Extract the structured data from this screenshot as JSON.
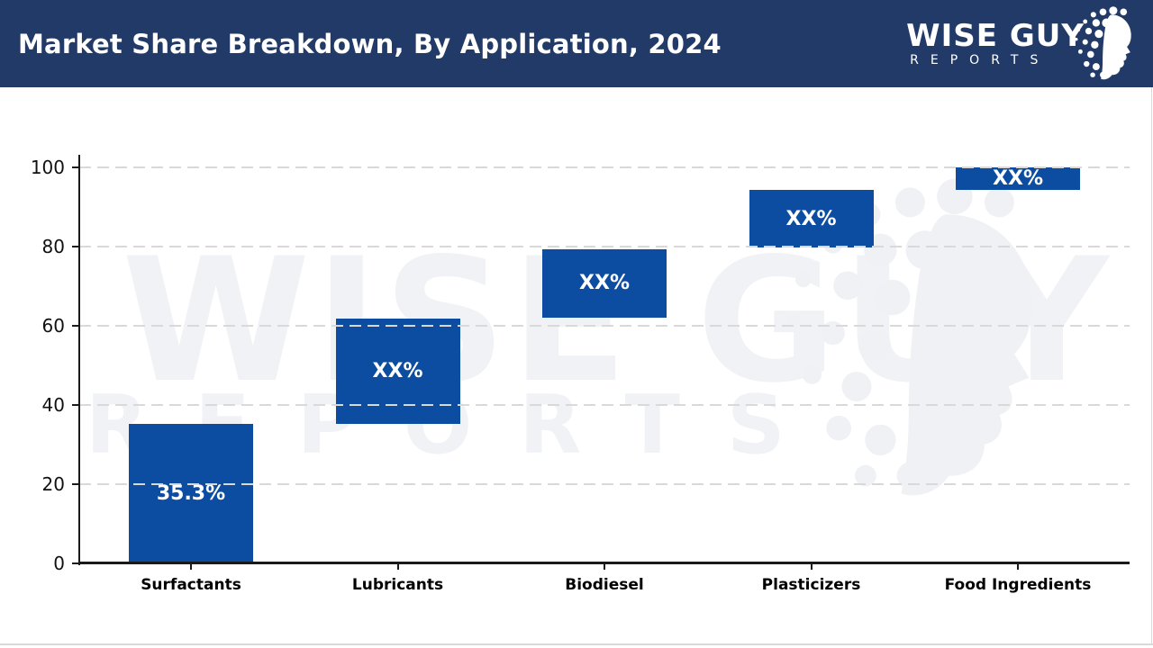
{
  "header": {
    "title": "Market Share Breakdown, By Application, 2024",
    "logo": {
      "line1": "WISE GUY",
      "line2": "REPORTS"
    }
  },
  "watermark": {
    "line1": "WISE GUY",
    "line2": "REPORTS"
  },
  "colors": {
    "header_bg": "#223a68",
    "bar_fill": "#0c4da2",
    "bar_label_text": "#ffffff",
    "gridline": "#d9d9d9",
    "axis": "#1a1a1a",
    "tick_label_text": "#111111",
    "watermark_gray": "#f1f2f5",
    "background": "#ffffff"
  },
  "chart_data": {
    "type": "bar",
    "subtype": "waterfall",
    "title": "Market Share Breakdown, By Application, 2024",
    "categories": [
      "Surfactants",
      "Lubricants",
      "Biodiesel",
      "Plasticizers",
      "Food Ingredients"
    ],
    "segments": [
      {
        "category": "Surfactants",
        "start": 0,
        "end": 35.3,
        "value_label": "35.3%"
      },
      {
        "category": "Lubricants",
        "start": 35.3,
        "end": 61.9,
        "value_label": "XX%"
      },
      {
        "category": "Biodiesel",
        "start": 62.1,
        "end": 79.3,
        "value_label": "XX%"
      },
      {
        "category": "Plasticizers",
        "start": 79.7,
        "end": 94.3,
        "value_label": "XX%"
      },
      {
        "category": "Food Ingredients",
        "start": 94.3,
        "end": 100,
        "value_label": "XX%"
      }
    ],
    "xlabel": "",
    "ylabel": "",
    "ylim": [
      0,
      103
    ],
    "y_ticks": [
      0,
      20,
      40,
      60,
      80,
      100
    ],
    "grid": "horizontal-dashed",
    "legend": null
  }
}
